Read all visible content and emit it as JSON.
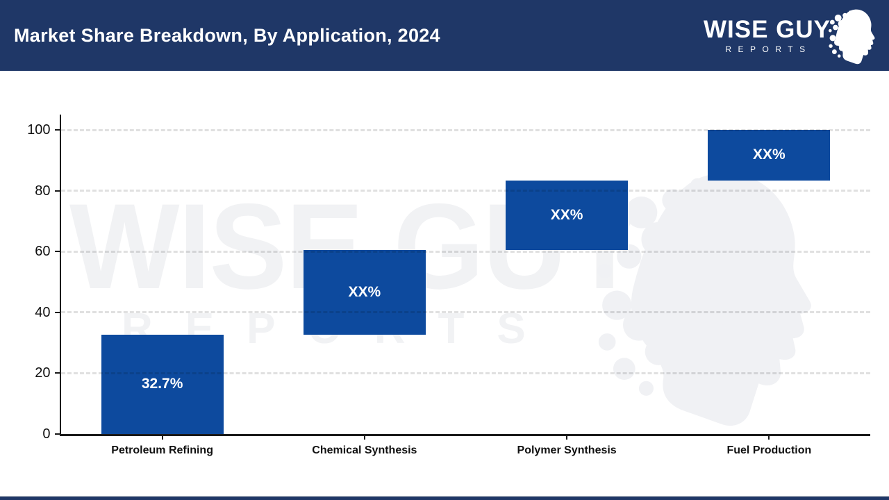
{
  "header": {
    "title": "Market Share Breakdown, By Application, 2024",
    "logo_line1": "WISE GUY",
    "logo_line2": "REPORTS"
  },
  "watermark": {
    "line1": "WISE GUY",
    "line2": "REPORTS"
  },
  "colors": {
    "header_bg": "#1f3767",
    "bar_fill": "#0d4a9e",
    "bar_label": "#ffffff",
    "title_text": "#ffffff",
    "watermark": "#f1f2f4",
    "axis": "#1a1a1a"
  },
  "chart_data": {
    "type": "bar",
    "subtype": "waterfall",
    "title": "Market Share Breakdown, By Application, 2024",
    "categories": [
      "Petroleum Refining",
      "Chemical Synthesis",
      "Polymer Synthesis",
      "Fuel Production"
    ],
    "segments": [
      {
        "category": "Petroleum Refining",
        "start": 0,
        "end": 32.7,
        "label": "32.7%"
      },
      {
        "category": "Chemical Synthesis",
        "start": 32.7,
        "end": 60.5,
        "label": "XX%"
      },
      {
        "category": "Polymer Synthesis",
        "start": 60.5,
        "end": 83.4,
        "label": "XX%"
      },
      {
        "category": "Fuel Production",
        "start": 83.4,
        "end": 100,
        "label": "XX%"
      }
    ],
    "xlabel": "",
    "ylabel": "",
    "yticks": [
      0,
      20,
      40,
      60,
      80,
      100
    ],
    "ylim": [
      0,
      105
    ],
    "grid": "dashed-horizontal",
    "legend": "none",
    "bar_color": "#0d4a9e"
  }
}
